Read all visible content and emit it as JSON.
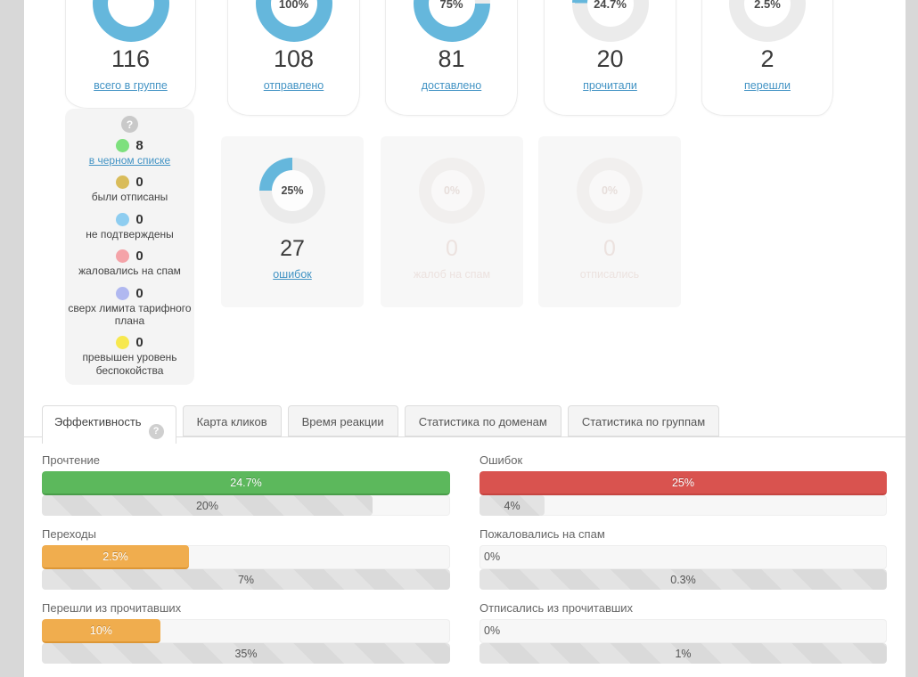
{
  "ui": {
    "help_glyph": "?"
  },
  "colors": {
    "donut_blue": "#65b7dc",
    "donut_track": "#ebebeb",
    "donut_track_faded": "#f1efee",
    "bar_green": "#5cb85c",
    "bar_orange": "#f0ad4e",
    "bar_red": "#d9534f",
    "link_blue": "#4293c4",
    "gutter_gray": "#d8d8d8"
  },
  "summary_cards": [
    {
      "value": "116",
      "label": "всего в группе",
      "percent_label": "",
      "fraction": 1
    },
    {
      "value": "108",
      "label": "отправлено",
      "percent_label": "100%",
      "fraction": 1
    },
    {
      "value": "81",
      "label": "доставлено",
      "percent_label": "75%",
      "fraction": 0.75
    },
    {
      "value": "20",
      "label": "прочитали",
      "percent_label": "24.7%",
      "fraction": 0.247
    },
    {
      "value": "2",
      "label": "перешли",
      "percent_label": "2.5%",
      "fraction": 0.025
    }
  ],
  "legend": {
    "items": [
      {
        "count": "8",
        "label": "в черном списке",
        "color": "#7de07d",
        "is_link": true
      },
      {
        "count": "0",
        "label": "были отписаны",
        "color": "#d9bc5a"
      },
      {
        "count": "0",
        "label": "не подтверждены",
        "color": "#8ecdf0"
      },
      {
        "count": "0",
        "label": "жаловались на спам",
        "color": "#f4a3a8"
      },
      {
        "count": "0",
        "label": "сверх лимита тарифного плана",
        "color": "#b0b8f0"
      },
      {
        "count": "0",
        "label": "превышен уровень беспокойства",
        "color": "#f7e84e"
      }
    ]
  },
  "secondary_cards": [
    {
      "value": "27",
      "label": "ошибок",
      "percent_label": "25%",
      "fraction": 0.25,
      "state": "active"
    },
    {
      "value": "0",
      "label": "жалоб на спам",
      "percent_label": "0%",
      "fraction": 0,
      "state": "disabled"
    },
    {
      "value": "0",
      "label": "отписались",
      "percent_label": "0%",
      "fraction": 0,
      "state": "disabled"
    }
  ],
  "tabs": [
    {
      "label": "Эффективность",
      "active": true,
      "has_help": true
    },
    {
      "label": "Карта кликов"
    },
    {
      "label": "Время реакции"
    },
    {
      "label": "Статистика по доменам"
    },
    {
      "label": "Статистика по группам"
    }
  ],
  "metrics": {
    "left": [
      {
        "label": "Прочтение",
        "value": "24.7%",
        "value_width": 100,
        "avg": "20%",
        "avg_width": 81
      },
      {
        "label": "Переходы",
        "value": "2.5%",
        "value_width": 36,
        "avg": "7%",
        "avg_width": 100
      },
      {
        "label": "Перешли из прочитавших",
        "value": "10%",
        "value_width": 29,
        "avg": "35%",
        "avg_width": 100
      }
    ],
    "right": [
      {
        "label": "Ошибок",
        "value": "25%",
        "value_width": 100,
        "avg": "4%",
        "avg_width": 16
      },
      {
        "label": "Пожаловались на спам",
        "value": "0%",
        "value_width": 0,
        "avg": "0.3%",
        "avg_width": 100
      },
      {
        "label": "Отписались из прочитавших",
        "value": "0%",
        "value_width": 0,
        "avg": "1%",
        "avg_width": 100
      }
    ]
  }
}
